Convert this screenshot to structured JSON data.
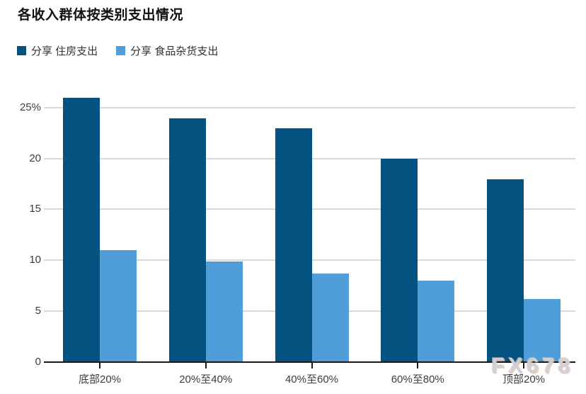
{
  "title": "各收入群体按类别支出情况",
  "legend": {
    "items": [
      {
        "label": "分享 住房支出",
        "color": "#045380"
      },
      {
        "label": "分享 食品杂货支出",
        "color": "#4f9dd9"
      }
    ]
  },
  "watermark": "FX678",
  "colors": {
    "housing_bar": "#045380",
    "grocery_bar": "#4f9dd9",
    "gridline": "#d9d9d9",
    "axis": "#1a1a1a",
    "tick_text": "#3c3c3c"
  },
  "chart_data": {
    "type": "bar",
    "title": "各收入群体按类别支出情况",
    "categories": [
      "底部20%",
      "20%至40%",
      "40%至60%",
      "60%至80%",
      "顶部20%"
    ],
    "series": [
      {
        "name": "分享 住房支出",
        "color": "#045380",
        "values": [
          26,
          24,
          23,
          20,
          18
        ]
      },
      {
        "name": "分享 食品杂货支出",
        "color": "#4f9dd9",
        "values": [
          11,
          9.9,
          8.7,
          8,
          6.2
        ]
      }
    ],
    "xlabel": "",
    "ylabel": "",
    "ylim": [
      0,
      26.5
    ],
    "yticks": [
      0,
      5,
      10,
      15,
      20,
      25
    ],
    "ytick_labels": [
      "0",
      "5",
      "10",
      "15",
      "20",
      "25%"
    ],
    "grid": true,
    "legend_position": "top-left"
  }
}
